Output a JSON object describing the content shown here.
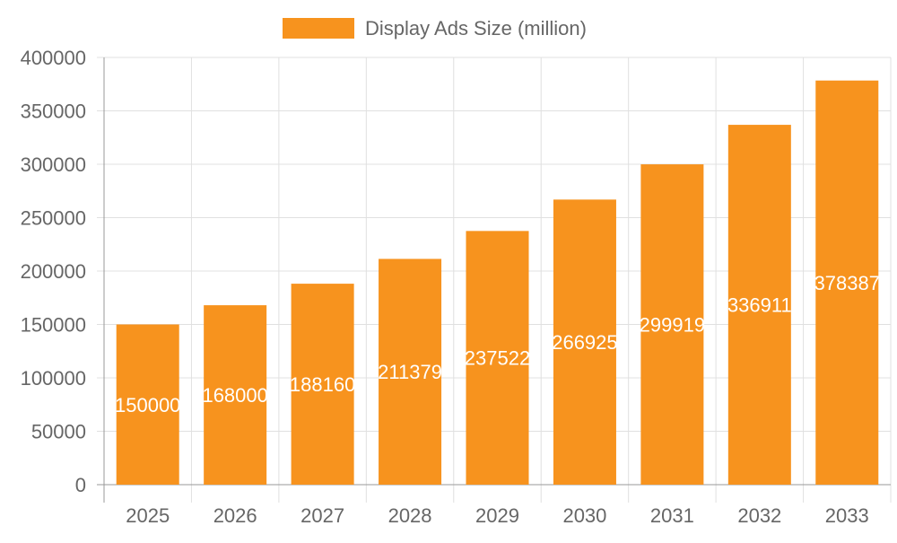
{
  "chart_data": {
    "type": "bar",
    "title": "",
    "xlabel": "",
    "ylabel": "",
    "categories": [
      "2025",
      "2026",
      "2027",
      "2028",
      "2029",
      "2030",
      "2031",
      "2032",
      "2033"
    ],
    "series": [
      {
        "name": "Display Ads Size (million)",
        "values": [
          150000,
          168000,
          188160,
          211379,
          237522,
          266925,
          299919,
          336911,
          378387
        ],
        "color": "#f7931e"
      }
    ],
    "ylim": [
      0,
      400000
    ],
    "yticks": [
      0,
      50000,
      100000,
      150000,
      200000,
      250000,
      300000,
      350000,
      400000
    ],
    "grid": true,
    "legend": "top",
    "data_labels": true,
    "data_label_color": "#ffffff"
  }
}
